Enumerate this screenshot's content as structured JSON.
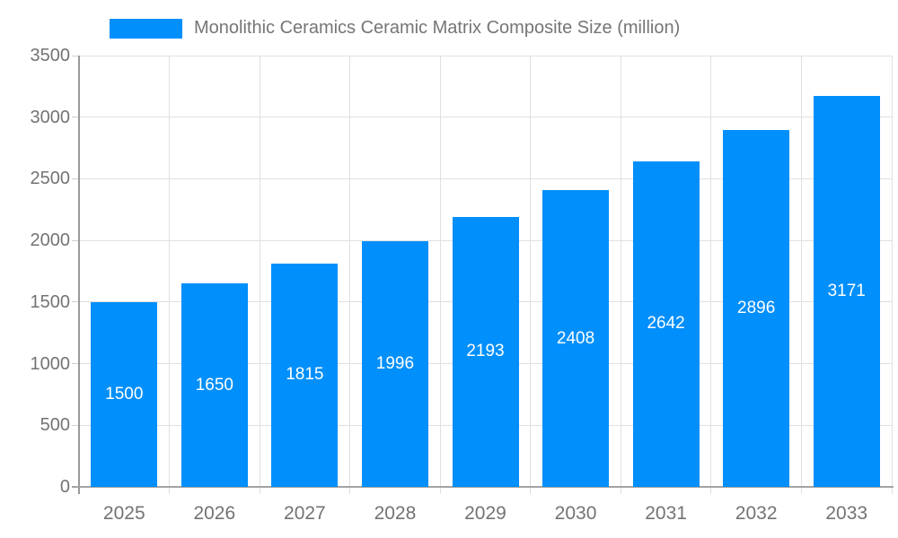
{
  "legend": {
    "label": "Monolithic Ceramics Ceramic Matrix Composite Size (million)"
  },
  "chart_data": {
    "type": "bar",
    "title": "Monolithic Ceramics Ceramic Matrix Composite Size (million)",
    "series": [
      {
        "name": "Monolithic Ceramics Ceramic Matrix Composite Size (million)",
        "values": [
          1500,
          1650,
          1815,
          1996,
          2193,
          2408,
          2642,
          2896,
          3171
        ]
      }
    ],
    "categories": [
      "2025",
      "2026",
      "2027",
      "2028",
      "2029",
      "2030",
      "2031",
      "2032",
      "2033"
    ],
    "xlabel": "",
    "ylabel": "",
    "ylim": [
      0,
      3500
    ],
    "yticks": [
      0,
      500,
      1000,
      1500,
      2000,
      2500,
      3000,
      3500
    ],
    "grid": true,
    "legend_position": "top",
    "value_labels": "inside-center",
    "colors": {
      "bar": "#008FFB",
      "grid": "#e0e0e0",
      "axis_line": "#a3a3a3",
      "y_axis_line": "#999999",
      "tick": "#cfcfcf",
      "axis_text": "#737373",
      "title_text": "#757575",
      "value_text": "#ffffff"
    }
  }
}
